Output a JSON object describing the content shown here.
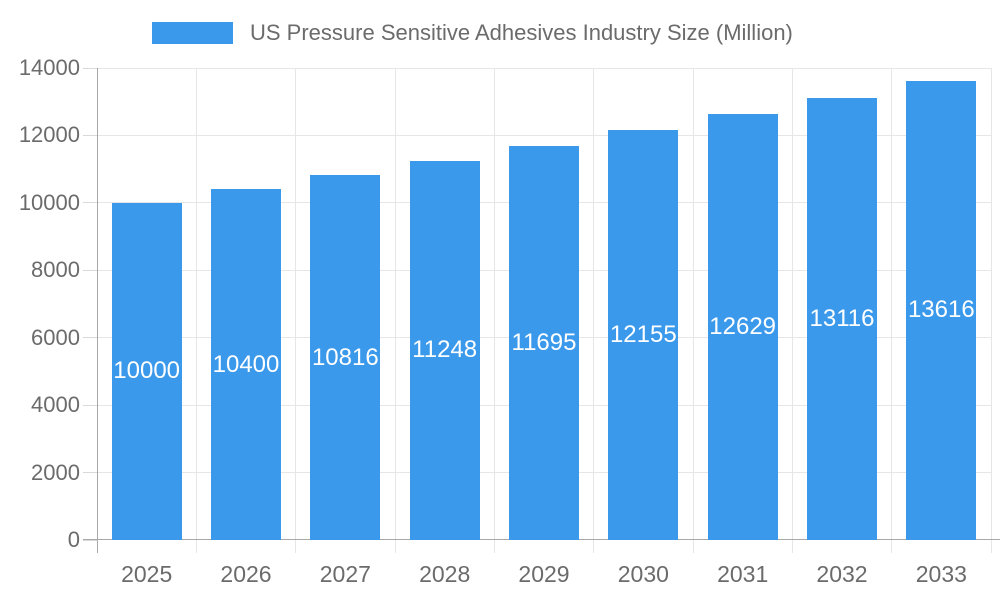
{
  "chart_data": {
    "type": "bar",
    "title": "US Pressure Sensitive Adhesives Industry Size (Million)",
    "categories": [
      "2025",
      "2026",
      "2027",
      "2028",
      "2029",
      "2030",
      "2031",
      "2032",
      "2033"
    ],
    "series": [
      {
        "name": "US Pressure Sensitive Adhesives Industry Size (Million)",
        "values": [
          10000,
          10400,
          10816,
          11248,
          11695,
          12155,
          12629,
          13116,
          13616
        ]
      }
    ],
    "value_labels": [
      10000,
      10400,
      10816,
      11248,
      11695,
      12155,
      12629,
      13116,
      13616
    ],
    "value_label_position": "inside-middle",
    "xlabel": "",
    "ylabel": "",
    "ylim": [
      0,
      14000
    ],
    "ytick_step": 2000,
    "yticks": [
      0,
      2000,
      4000,
      6000,
      8000,
      10000,
      12000,
      14000
    ],
    "grid": true,
    "legend_position": "top",
    "colors": {
      "bar": "#3b99ec",
      "gridline": "#e6e6e6",
      "axis_line": "#a8a8a8",
      "tick": "#d9d9d9",
      "axis_text": "#6b6b6b",
      "value_text": "#ffffff",
      "background": "#ffffff"
    }
  }
}
